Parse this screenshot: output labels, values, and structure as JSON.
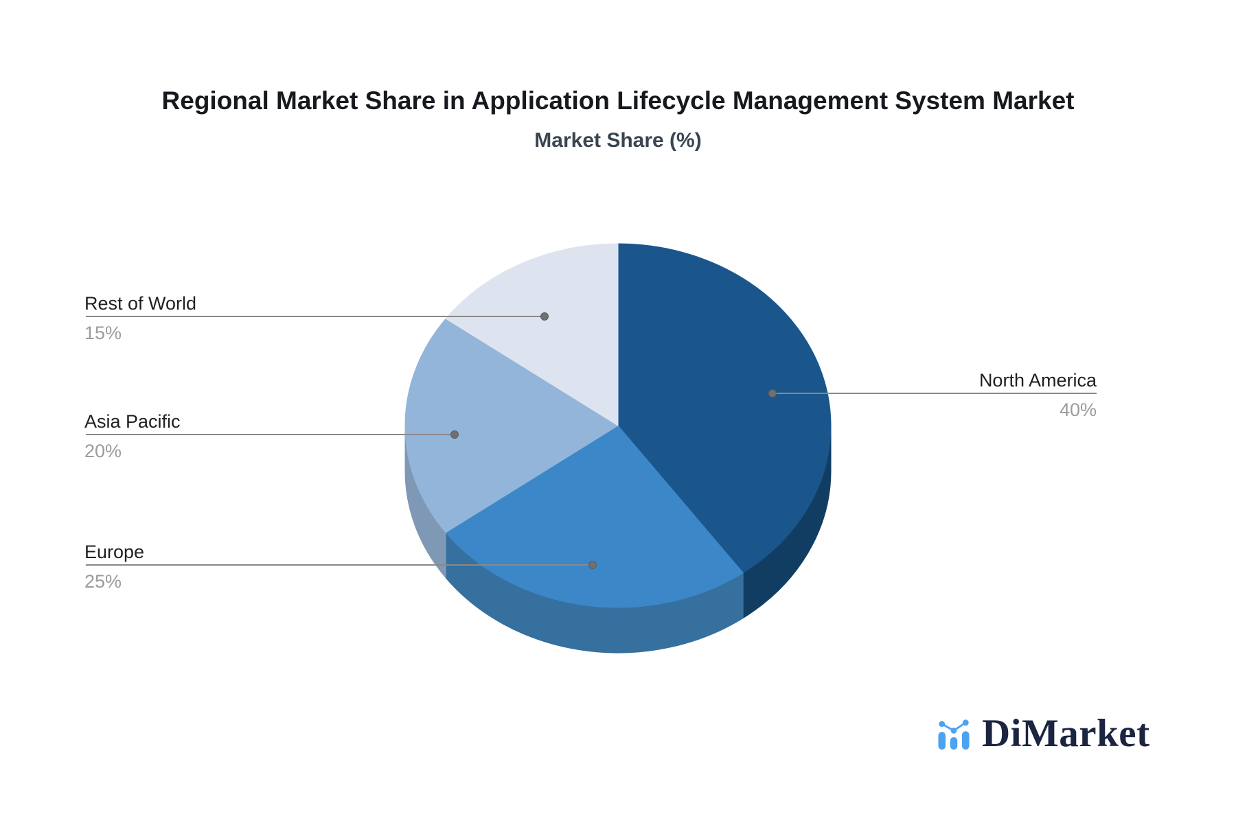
{
  "title": "Regional Market Share in Application Lifecycle Management System Market",
  "subtitle": "Market Share (%)",
  "logo": {
    "text": "DiMarket",
    "icon": "bar-line-chart-icon",
    "icon_color": "#4DA3F2",
    "text_color": "#1B2440"
  },
  "chart_data": {
    "type": "pie",
    "style": "3d",
    "unit": "%",
    "title": "Regional Market Share in Application Lifecycle Management System Market",
    "subtitle": "Market Share (%)",
    "direction": "clockwise",
    "start_angle_deg": 0,
    "legend_position": "leader-line-labels",
    "slices": [
      {
        "label": "North America",
        "value": 40,
        "pct_label": "40%",
        "color": "#1A568C",
        "side_color": "#123D63"
      },
      {
        "label": "Europe",
        "value": 25,
        "pct_label": "25%",
        "color": "#3C87C8",
        "side_color": "#35709F"
      },
      {
        "label": "Asia Pacific",
        "value": 20,
        "pct_label": "20%",
        "color": "#93B5D9",
        "side_color": "#7E98B5"
      },
      {
        "label": "Rest of World",
        "value": 15,
        "pct_label": "15%",
        "color": "#DEE4EF",
        "side_color": "#C8D1DF"
      }
    ]
  },
  "colors": {
    "background": "#FFFFFF",
    "title": "#16191E",
    "subtitle": "#3A4551",
    "label_text": "#1F1F1F",
    "pct_text": "#9B9B9B",
    "leader_line": "#898989",
    "leader_dot": "#707070"
  }
}
